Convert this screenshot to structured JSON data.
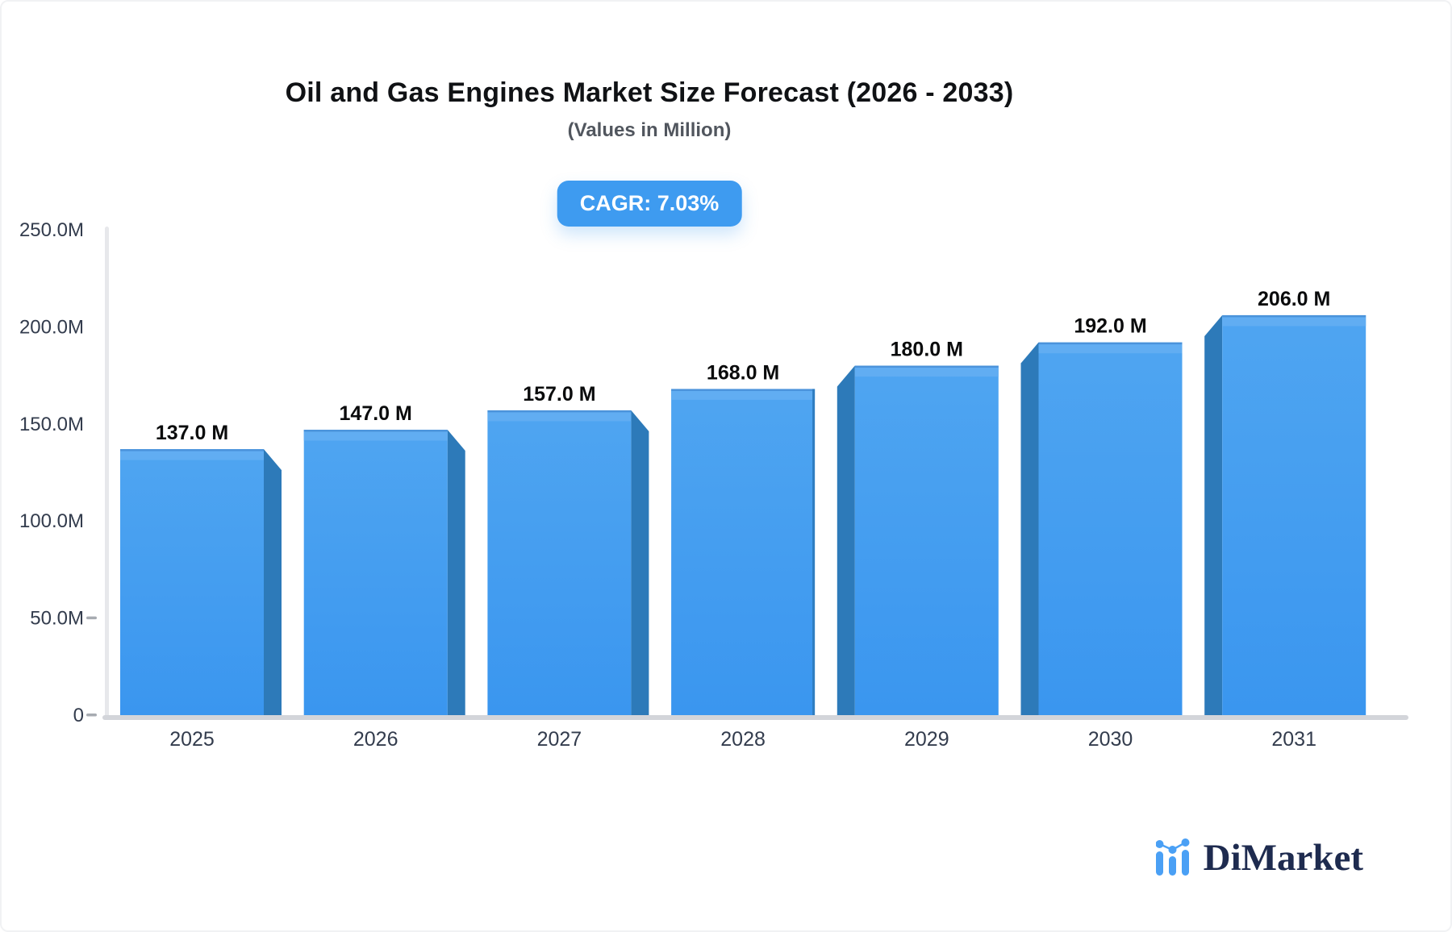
{
  "header": {
    "title": "Oil and Gas Engines Market Size Forecast (2026 - 2033)",
    "subtitle": "(Values in Million)",
    "cagr_badge": "CAGR: 7.03%"
  },
  "brand": {
    "name": "DiMarket"
  },
  "colors": {
    "accent_blue": "#3e9bf0",
    "badge_bg": "#3e9bf0",
    "badge_text": "#ffffff",
    "bar_face_top": "#4fa5f1",
    "bar_face_bottom": "#3a96ef",
    "bar_top_edge": "#4a91d8",
    "bar_top_strip": "#61adf2",
    "bar_side": "#2d7ab9",
    "bar_center_edge": "#2f7dc0",
    "axis_line": "#e7e8eb",
    "baseline": "#d3d5da",
    "tick_dash": "#a7abb1",
    "tick_text": "#333c4d",
    "value_text": "#0a0b0c",
    "logo_icon": "#4aa0f5",
    "logo_text": "#1e2b4f"
  },
  "chart_data": {
    "type": "bar",
    "title": "Oil and Gas Engines Market Size Forecast (2026 - 2033)",
    "subtitle": "(Values in Million)",
    "unit": "Million",
    "cagr": "7.03%",
    "categories": [
      "2025",
      "2026",
      "2027",
      "2028",
      "2029",
      "2030",
      "2031"
    ],
    "values": [
      137.0,
      147.0,
      157.0,
      168.0,
      180.0,
      192.0,
      206.0
    ],
    "bar_labels": [
      "137.0 M",
      "147.0 M",
      "157.0 M",
      "168.0 M",
      "180.0 M",
      "192.0 M",
      "206.0 M"
    ],
    "ylim": [
      0,
      250
    ],
    "y_ticks": [
      {
        "value": 250,
        "label": "250.0M",
        "dash": false
      },
      {
        "value": 200,
        "label": "200.0M",
        "dash": false
      },
      {
        "value": 150,
        "label": "150.0M",
        "dash": false
      },
      {
        "value": 100,
        "label": "100.0M",
        "dash": false
      },
      {
        "value": 50,
        "label": "50.0M",
        "dash": true
      },
      {
        "value": 0,
        "label": "0",
        "dash": true
      }
    ],
    "xlabel": "",
    "ylabel": "",
    "grid": false,
    "legend": null,
    "style": "3d-perspective-bars"
  }
}
